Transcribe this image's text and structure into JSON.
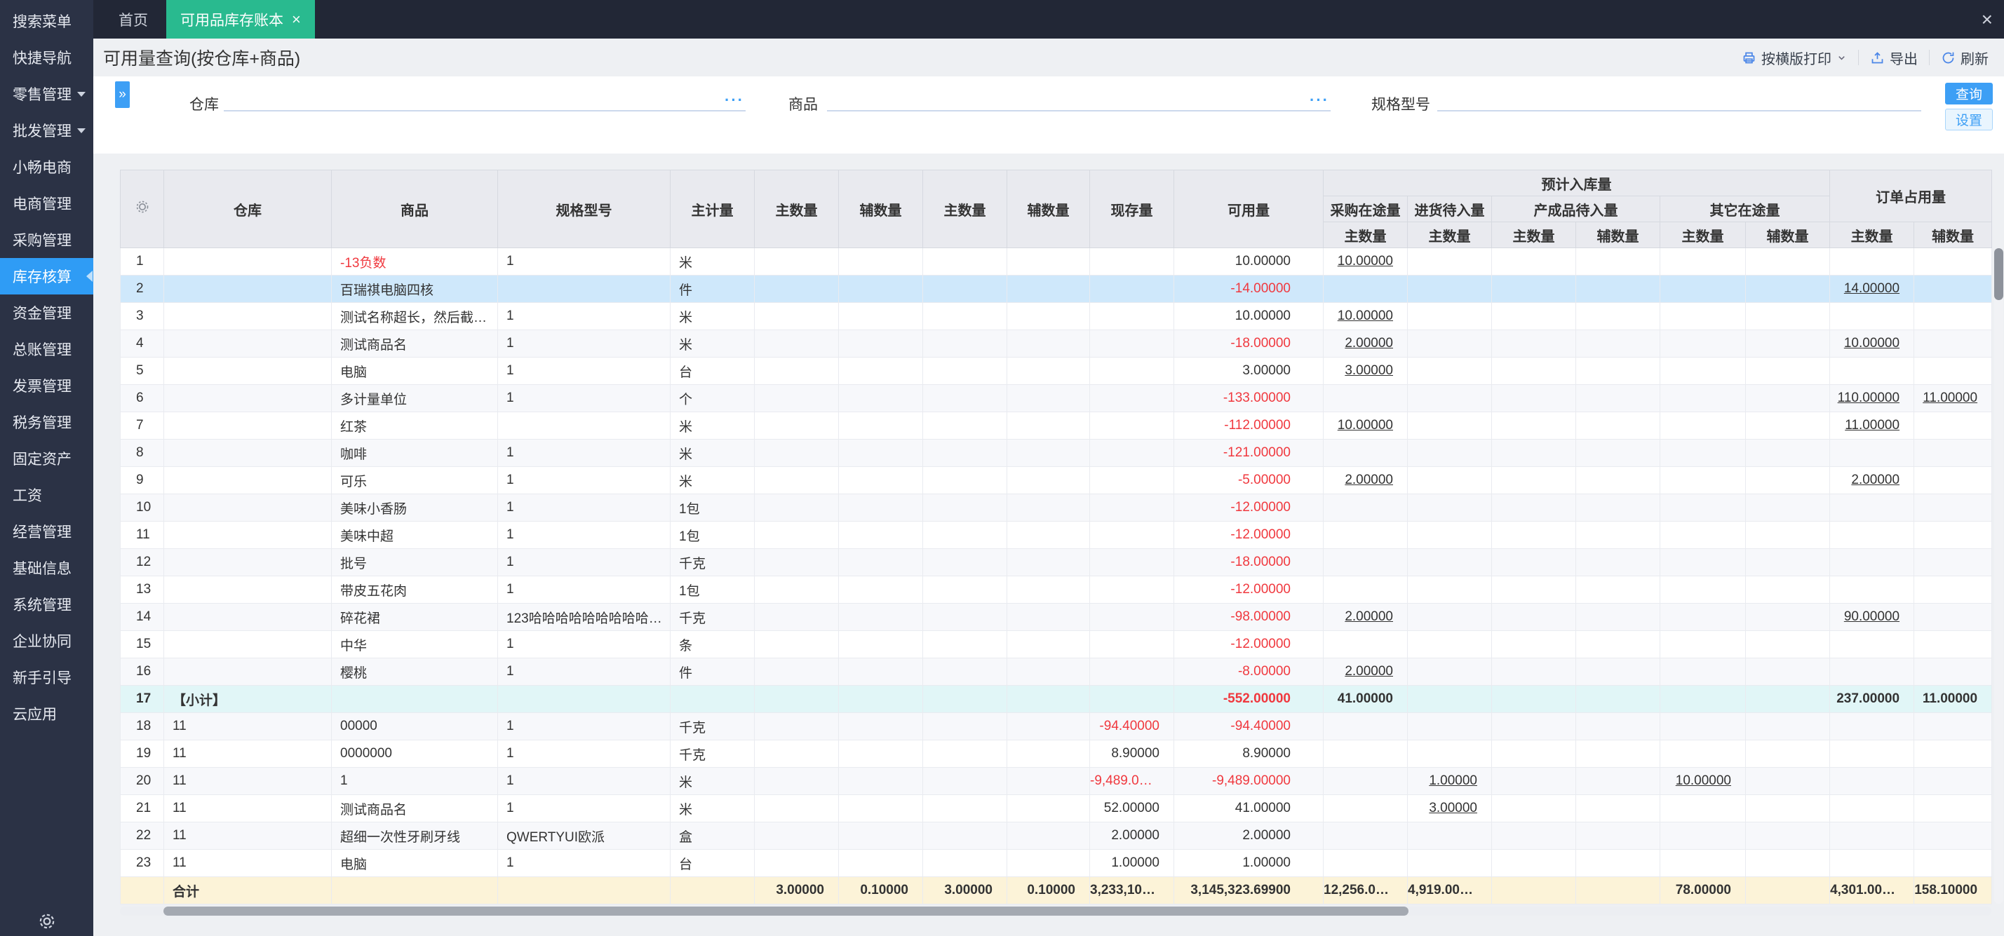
{
  "colors": {
    "sidebar_bg": "#2b3245",
    "topbar_bg": "#222736",
    "active_item_blue": "#2f9cf5",
    "tab_green": "#29ba8f",
    "accent_blue": "#3d9ff5",
    "negative_red": "#f0383e",
    "selected_row": "#cfe8fb",
    "subtotal_row": "#e1f6f7",
    "total_row": "#fcf3d8"
  },
  "glyphs": {
    "close": "×",
    "expand": "»",
    "ellipsis": "···"
  },
  "sidebar": {
    "items": [
      {
        "label": "搜索菜单"
      },
      {
        "label": "快捷导航"
      },
      {
        "label": "零售管理",
        "arrow": true
      },
      {
        "label": "批发管理",
        "arrow": true
      },
      {
        "label": "小畅电商"
      },
      {
        "label": "电商管理"
      },
      {
        "label": "采购管理"
      },
      {
        "label": "库存核算",
        "active": true
      },
      {
        "label": "资金管理"
      },
      {
        "label": "总账管理"
      },
      {
        "label": "发票管理"
      },
      {
        "label": "税务管理"
      },
      {
        "label": "固定资产"
      },
      {
        "label": "工资"
      },
      {
        "label": "经营管理"
      },
      {
        "label": "基础信息"
      },
      {
        "label": "系统管理"
      },
      {
        "label": "企业协同"
      },
      {
        "label": "新手引导"
      },
      {
        "label": "云应用"
      }
    ]
  },
  "tabs": {
    "home": "首页",
    "active_tab": "可用品库存账本"
  },
  "page": {
    "title": "可用量查询(按仓库+商品)"
  },
  "toolbar": {
    "print": "按横版打印",
    "export": "导出",
    "refresh": "刷新"
  },
  "filters": {
    "warehouse_label": "仓库",
    "product_label": "商品",
    "spec_label": "规格型号",
    "query_button": "查询",
    "settings_button": "设置"
  },
  "table": {
    "headers": {
      "warehouse": "仓库",
      "product": "商品",
      "spec": "规格型号",
      "unit": "主计量",
      "main_qty": "主数量",
      "aux_qty": "辅数量",
      "stock": "现存量",
      "available": "可用量",
      "expected_group": "预计入库量",
      "purchase": "采购在途量",
      "incoming": "进货待入量",
      "finished": "产成品待入量",
      "other": "其它在途量",
      "order_group": "订单占用量"
    },
    "rows": [
      {
        "cells": [
          "1",
          "",
          "-13负数",
          "1",
          "米",
          "",
          "",
          "",
          "",
          "",
          "10.00000",
          "10.00000",
          "",
          "",
          "",
          "",
          "",
          "",
          ""
        ],
        "red": [
          2
        ],
        "link": [
          11
        ]
      },
      {
        "cls": "selected",
        "cells": [
          "2",
          "",
          "百瑞祺电脑四核",
          "",
          "件",
          "",
          "",
          "",
          "",
          "",
          "-14.00000",
          "",
          "",
          "",
          "",
          "",
          "",
          "14.00000",
          ""
        ],
        "red": [
          10
        ],
        "link": [
          17
        ]
      },
      {
        "cells": [
          "3",
          "",
          "测试名称超长，然后截断有没...",
          "1",
          "米",
          "",
          "",
          "",
          "",
          "",
          "10.00000",
          "10.00000",
          "",
          "",
          "",
          "",
          "",
          "",
          ""
        ],
        "link": [
          11
        ]
      },
      {
        "cells": [
          "4",
          "",
          "测试商品名",
          "1",
          "米",
          "",
          "",
          "",
          "",
          "",
          "-18.00000",
          "2.00000",
          "",
          "",
          "",
          "",
          "",
          "10.00000",
          ""
        ],
        "red": [
          10
        ],
        "link": [
          11,
          17
        ]
      },
      {
        "cells": [
          "5",
          "",
          "电脑",
          "1",
          "台",
          "",
          "",
          "",
          "",
          "",
          "3.00000",
          "3.00000",
          "",
          "",
          "",
          "",
          "",
          "",
          ""
        ],
        "link": [
          11
        ]
      },
      {
        "cells": [
          "6",
          "",
          "多计量单位",
          "1",
          "个",
          "",
          "",
          "",
          "",
          "",
          "-133.00000",
          "",
          "",
          "",
          "",
          "",
          "",
          "110.00000",
          "11.00000"
        ],
        "red": [
          10
        ],
        "link": [
          17,
          18
        ]
      },
      {
        "cells": [
          "7",
          "",
          "红茶",
          "",
          "米",
          "",
          "",
          "",
          "",
          "",
          "-112.00000",
          "10.00000",
          "",
          "",
          "",
          "",
          "",
          "11.00000",
          ""
        ],
        "red": [
          10
        ],
        "link": [
          11,
          17
        ]
      },
      {
        "cells": [
          "8",
          "",
          "咖啡",
          "1",
          "米",
          "",
          "",
          "",
          "",
          "",
          "-121.00000",
          "",
          "",
          "",
          "",
          "",
          "",
          "",
          ""
        ],
        "red": [
          10
        ]
      },
      {
        "cells": [
          "9",
          "",
          "可乐",
          "1",
          "米",
          "",
          "",
          "",
          "",
          "",
          "-5.00000",
          "2.00000",
          "",
          "",
          "",
          "",
          "",
          "2.00000",
          ""
        ],
        "red": [
          10
        ],
        "link": [
          11,
          17
        ]
      },
      {
        "cells": [
          "10",
          "",
          "美味小香肠",
          "1",
          "1包",
          "",
          "",
          "",
          "",
          "",
          "-12.00000",
          "",
          "",
          "",
          "",
          "",
          "",
          "",
          ""
        ],
        "red": [
          10
        ]
      },
      {
        "cells": [
          "11",
          "",
          "美味中超",
          "1",
          "1包",
          "",
          "",
          "",
          "",
          "",
          "-12.00000",
          "",
          "",
          "",
          "",
          "",
          "",
          "",
          ""
        ],
        "red": [
          10
        ]
      },
      {
        "cells": [
          "12",
          "",
          "批号",
          "1",
          "千克",
          "",
          "",
          "",
          "",
          "",
          "-18.00000",
          "",
          "",
          "",
          "",
          "",
          "",
          "",
          ""
        ],
        "red": [
          10
        ]
      },
      {
        "cells": [
          "13",
          "",
          "带皮五花肉",
          "1",
          "1包",
          "",
          "",
          "",
          "",
          "",
          "-12.00000",
          "",
          "",
          "",
          "",
          "",
          "",
          "",
          ""
        ],
        "red": [
          10
        ]
      },
      {
        "cells": [
          "14",
          "",
          "碎花裙",
          "123哈哈哈哈哈哈哈哈哈哈哈...",
          "千克",
          "",
          "",
          "",
          "",
          "",
          "-98.00000",
          "2.00000",
          "",
          "",
          "",
          "",
          "",
          "90.00000",
          ""
        ],
        "red": [
          10
        ],
        "link": [
          11,
          17
        ]
      },
      {
        "cells": [
          "15",
          "",
          "中华",
          "1",
          "条",
          "",
          "",
          "",
          "",
          "",
          "-12.00000",
          "",
          "",
          "",
          "",
          "",
          "",
          "",
          ""
        ],
        "red": [
          10
        ]
      },
      {
        "cells": [
          "16",
          "",
          "樱桃",
          "1",
          "件",
          "",
          "",
          "",
          "",
          "",
          "-8.00000",
          "2.00000",
          "",
          "",
          "",
          "",
          "",
          "",
          ""
        ],
        "red": [
          10
        ],
        "link": [
          11
        ]
      },
      {
        "cls": "subtotal",
        "cells": [
          "17",
          "【小计】",
          "",
          "",
          "",
          "",
          "",
          "",
          "",
          "",
          "-552.00000",
          "41.00000",
          "",
          "",
          "",
          "",
          "",
          "237.00000",
          "11.00000"
        ],
        "red": [
          10
        ]
      },
      {
        "cells": [
          "18",
          "11",
          "00000",
          "1",
          "千克",
          "",
          "",
          "",
          "",
          "-94.40000",
          "-94.40000",
          "",
          "",
          "",
          "",
          "",
          "",
          "",
          ""
        ],
        "red": [
          9,
          10
        ]
      },
      {
        "cells": [
          "19",
          "11",
          "0000000",
          "1",
          "千克",
          "",
          "",
          "",
          "",
          "8.90000",
          "8.90000",
          "",
          "",
          "",
          "",
          "",
          "",
          "",
          ""
        ]
      },
      {
        "cells": [
          "20",
          "11",
          "1",
          "1",
          "米",
          "",
          "",
          "",
          "",
          "-9,489.000...",
          "-9,489.00000",
          "",
          "1.00000",
          "",
          "",
          "10.00000",
          "",
          "",
          ""
        ],
        "red": [
          9,
          10
        ],
        "link": [
          12,
          15
        ]
      },
      {
        "cells": [
          "21",
          "11",
          "测试商品名",
          "1",
          "米",
          "",
          "",
          "",
          "",
          "52.00000",
          "41.00000",
          "",
          "3.00000",
          "",
          "",
          "",
          "",
          "",
          ""
        ],
        "link": [
          12
        ]
      },
      {
        "cells": [
          "22",
          "11",
          "超细一次性牙刷牙线",
          "QWERTYUI欧派",
          "盒",
          "",
          "",
          "",
          "",
          "2.00000",
          "2.00000",
          "",
          "",
          "",
          "",
          "",
          "",
          "",
          ""
        ]
      },
      {
        "cells": [
          "23",
          "11",
          "电脑",
          "1",
          "台",
          "",
          "",
          "",
          "",
          "1.00000",
          "1.00000",
          "",
          "",
          "",
          "",
          "",
          "",
          "",
          ""
        ]
      }
    ],
    "footer": {
      "cells": [
        "",
        "合计",
        "",
        "",
        "",
        "3.00000",
        "0.10000",
        "3.00000",
        "0.10000",
        "3,233,105...",
        "3,145,323.69900",
        "12,256.00...",
        "4,919.00000",
        "",
        "",
        "78.00000",
        "",
        "4,301.00000",
        "158.10000"
      ]
    }
  }
}
